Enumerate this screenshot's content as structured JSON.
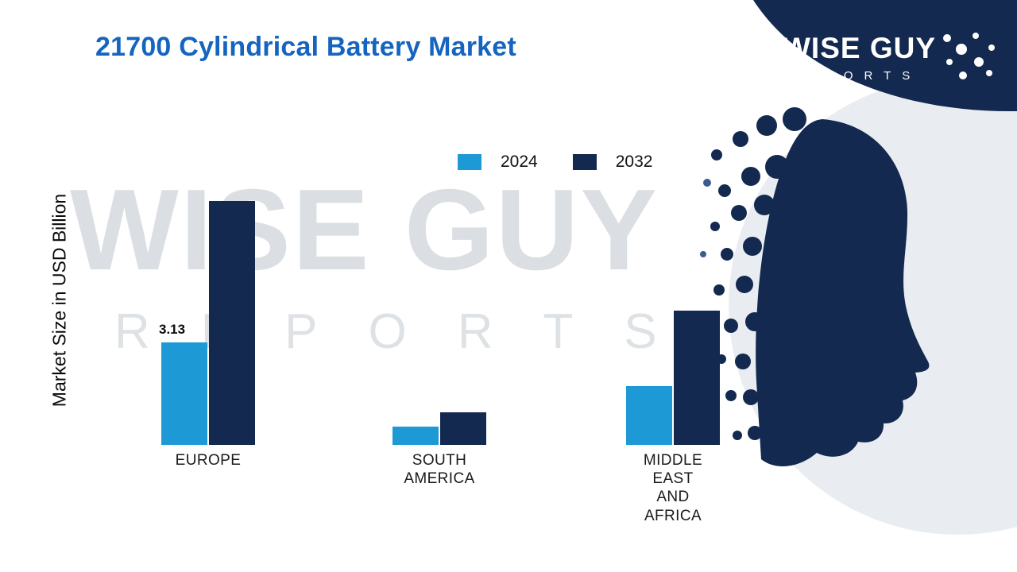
{
  "logo": {
    "line1": "WISE GUY",
    "line2": "REPORTS"
  },
  "watermark": {
    "line1": "WISE GUY",
    "line2": "REPORTS"
  },
  "colors": {
    "title": "#1565c0",
    "series_2024": "#1d9ad6",
    "series_2032": "#13294f",
    "logo_bg": "#13294f",
    "decor_circle": "#e9edf1",
    "watermark": "#becdd4"
  },
  "chart_data": {
    "type": "bar",
    "title": "21700 Cylindrical Battery Market",
    "ylabel": "Market Size in USD Billion",
    "categories": [
      "EUROPE",
      "SOUTH\nAMERICA",
      "MIDDLE\nEAST\nAND\nAFRICA"
    ],
    "series": [
      {
        "name": "2024",
        "color": "#1d9ad6",
        "values": [
          3.13,
          0.55,
          1.8
        ],
        "value_labels": [
          "3.13",
          "",
          ""
        ]
      },
      {
        "name": "2032",
        "color": "#13294f",
        "values": [
          7.45,
          1.0,
          4.1
        ],
        "value_labels": [
          "",
          "",
          ""
        ]
      }
    ],
    "ylim": [
      0,
      8
    ],
    "grid": false,
    "legend_position": "top-center"
  }
}
